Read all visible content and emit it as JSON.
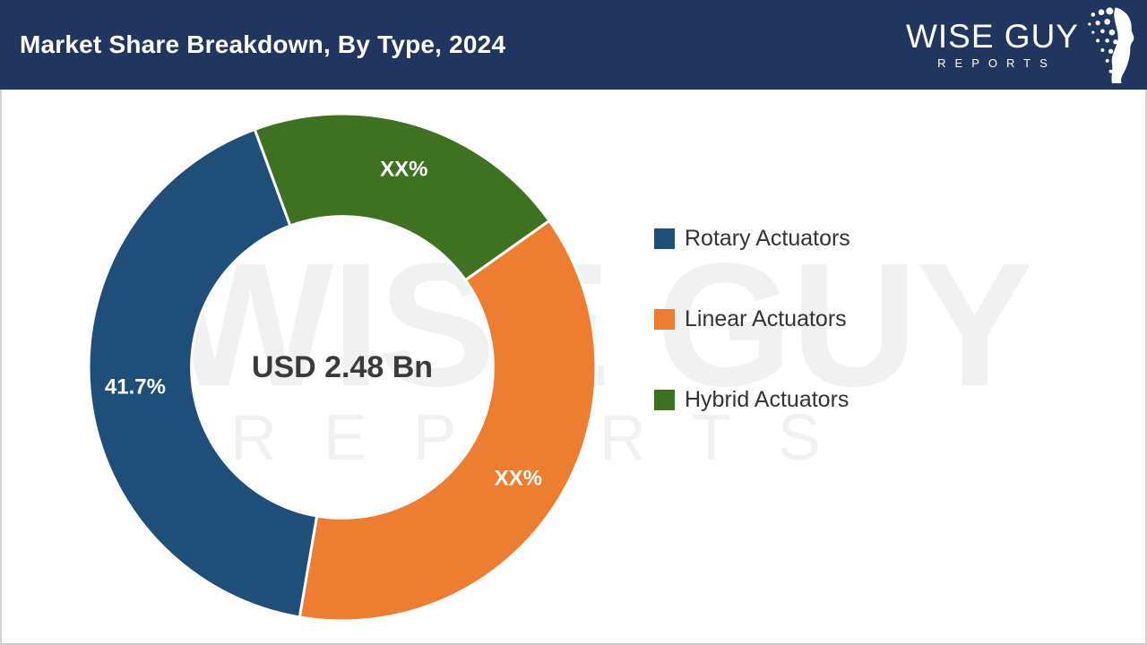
{
  "header": {
    "title": "Market Share Breakdown, By Type, 2024",
    "logo": {
      "line1": "WISE GUY",
      "line2": "REPORTS"
    }
  },
  "watermark": {
    "line1": "WISE GUY",
    "line2": "REPORTS"
  },
  "chart_data": {
    "type": "donut",
    "title": "Market Share Breakdown, By Type, 2024",
    "center_label": "USD 2.48 Bn",
    "start_angle_deg": 110.2,
    "direction": "ccw",
    "inner_radius_ratio": 0.595,
    "label_radius_ratio": 0.82,
    "legend_position": "right",
    "segments": [
      {
        "name": "Rotary Actuators",
        "display_label": "41.7%",
        "value": 41.7,
        "color": "#1f4e79"
      },
      {
        "name": "Linear Actuators",
        "display_label": "XX%",
        "value": 37.5,
        "color": "#ed7d31"
      },
      {
        "name": "Hybrid Actuators",
        "display_label": "XX%",
        "value": 20.8,
        "color": "#3e7120"
      }
    ]
  }
}
